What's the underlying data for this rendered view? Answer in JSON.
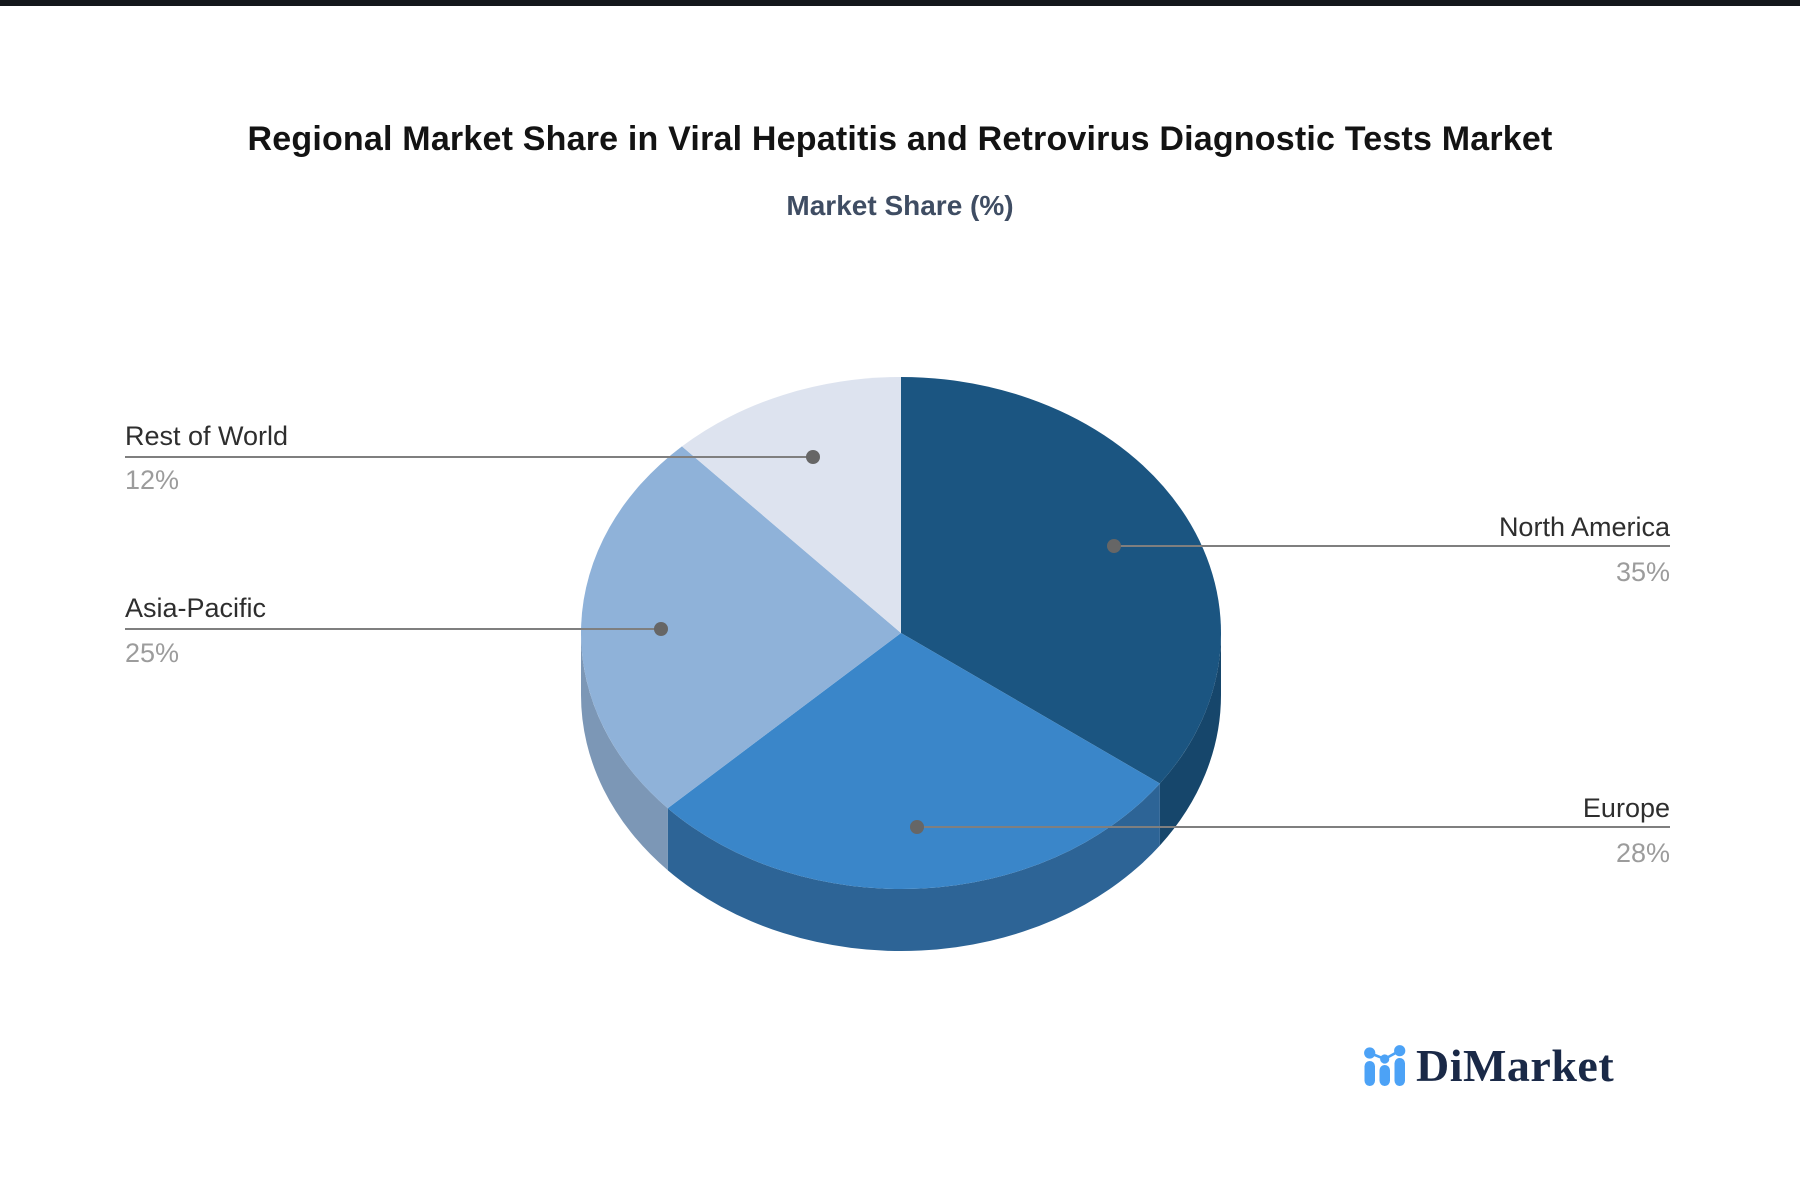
{
  "page": {
    "top_strip_color": "#14171B",
    "background_color": "#FFFFFF"
  },
  "chart_data": {
    "type": "pie",
    "style": "3d",
    "title": "Regional Market Share in Viral Hepatitis and Retrovirus Diagnostic Tests Market",
    "subtitle": "Market Share (%)",
    "unit": "%",
    "start_angle_deg": 0,
    "direction": "clockwise",
    "legend_position": "none",
    "slices": [
      {
        "label": "North America",
        "value": 35,
        "display": "35%",
        "color": "#1B5581",
        "side_color": "#16466B"
      },
      {
        "label": "Europe",
        "value": 28,
        "display": "28%",
        "color": "#3A86C9",
        "side_color": "#2D6496"
      },
      {
        "label": "Asia-Pacific",
        "value": 25,
        "display": "25%",
        "color": "#8FB2D9",
        "side_color": "#7C97B6"
      },
      {
        "label": "Rest of World",
        "value": 12,
        "display": "12%",
        "color": "#DDE3EF",
        "side_color": "#B9C3D5"
      }
    ],
    "label_style": {
      "name_color": "#2E2E2E",
      "pct_color": "#9C9C9C",
      "line_color": "#7F7F7F",
      "dot_color": "#666666"
    }
  },
  "branding": {
    "logo_text": "DiMarket",
    "logo_text_color": "#1A2947",
    "logo_icon": "bar-line-chart-icon",
    "logo_icon_color": "#4CA2F6"
  }
}
